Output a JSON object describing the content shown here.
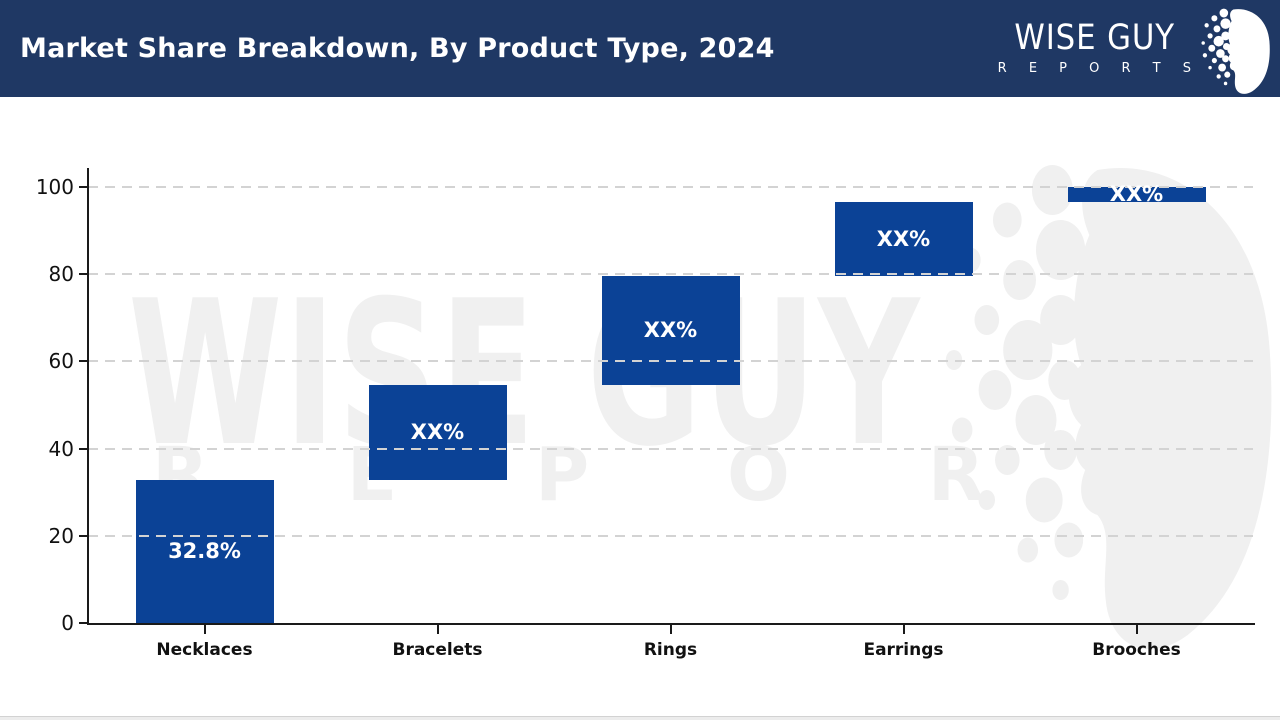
{
  "header": {
    "title": "Market Share Breakdown, By Product Type, 2024",
    "bg_color": "#1f3864",
    "logo": {
      "line1": "WISE GUY",
      "line2": "R E P O R T S"
    }
  },
  "watermark": {
    "line1": "WISE GUY",
    "line2": "R E P O R T S"
  },
  "chart_data": {
    "type": "bar",
    "subtype": "waterfall",
    "title": "Market Share Breakdown, By Product Type, 2024",
    "categories": [
      "Necklaces",
      "Bracelets",
      "Rings",
      "Earrings",
      "Brooches"
    ],
    "segments": [
      {
        "category": "Necklaces",
        "start": 0,
        "end": 32.8,
        "label": "32.8%"
      },
      {
        "category": "Bracelets",
        "start": 32.8,
        "end": 54.6,
        "label": "XX%"
      },
      {
        "category": "Rings",
        "start": 54.6,
        "end": 79.6,
        "label": "XX%"
      },
      {
        "category": "Earrings",
        "start": 79.6,
        "end": 96.6,
        "label": "XX%"
      },
      {
        "category": "Brooches",
        "start": 96.6,
        "end": 100,
        "label": "XX%"
      }
    ],
    "ylim": [
      0,
      100
    ],
    "yticks": [
      0,
      20,
      40,
      60,
      80,
      100
    ],
    "xlabel": "",
    "ylabel": "",
    "grid": "horizontal dashed, drawn over bars",
    "legend": "none",
    "bar_color": "#0b4296",
    "bar_label_color": "#ffffff",
    "axis_color": "#1a1a1a",
    "gridline_color": "#d3d3d3"
  }
}
